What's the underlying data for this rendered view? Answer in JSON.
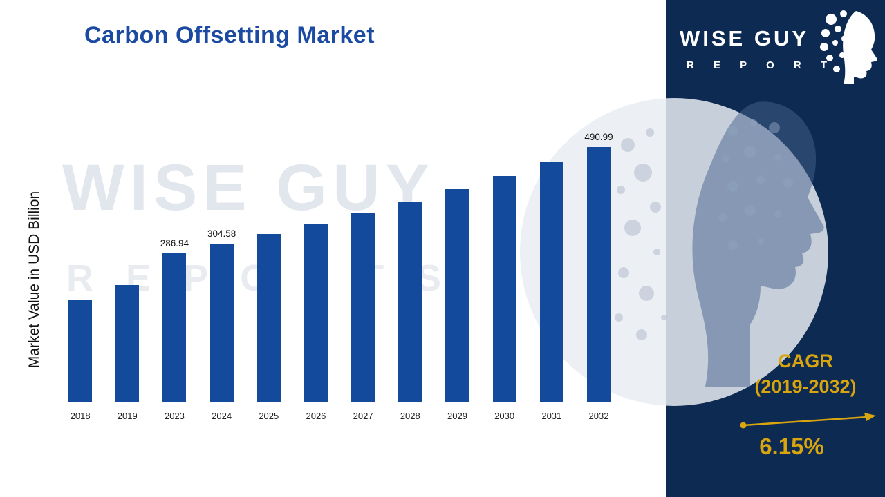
{
  "title": "Carbon Offsetting Market",
  "ylabel": "Market Value in USD Billion",
  "watermark": {
    "line1": "WISE GUY",
    "line2": "R E P O R T S"
  },
  "logo": {
    "line1": "WISE GUY",
    "line2": "R E P O R T S",
    "head_icon": "head-profile-dots-icon"
  },
  "panel": {
    "cagr_label": "CAGR",
    "cagr_range": "(2019-2032)",
    "cagr_value": "6.15%"
  },
  "colors": {
    "title_blue": "#1b4aa2",
    "bar_blue": "#134a9c",
    "panel_navy": "#0d2a52",
    "gold": "#d9a50f",
    "watermark_gray": "#ccd3df"
  },
  "chart_data": {
    "type": "bar",
    "title": "Carbon Offsetting Market",
    "xlabel": "",
    "ylabel": "Market Value in USD Billion",
    "unit": "USD Billion",
    "categories": [
      "2018",
      "2019",
      "2023",
      "2024",
      "2025",
      "2026",
      "2027",
      "2028",
      "2029",
      "2030",
      "2031",
      "2032"
    ],
    "values": [
      198,
      226,
      286.94,
      304.58,
      323.3,
      343.2,
      364.3,
      386.7,
      410.5,
      435.7,
      462.5,
      490.99
    ],
    "point_labels": [
      "",
      "",
      "286.94",
      "304.58",
      "",
      "",
      "",
      "",
      "",
      "",
      "",
      "490.99"
    ],
    "ylim": [
      0,
      520
    ],
    "grid": false,
    "legend": "none",
    "cagr_annotation": {
      "label": "CAGR",
      "range": "(2019-2032)",
      "value": "6.15%"
    }
  }
}
